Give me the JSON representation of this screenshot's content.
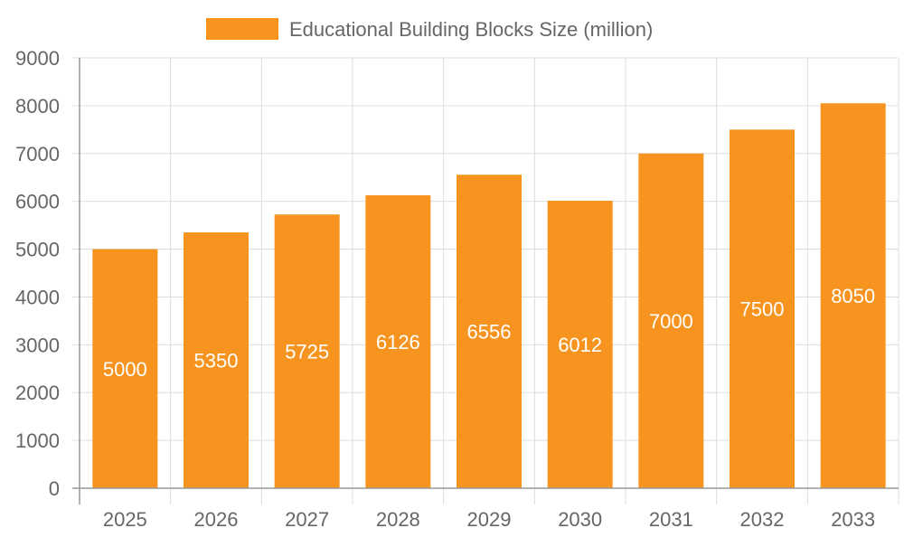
{
  "chart_data": {
    "type": "bar",
    "title": "",
    "legend": {
      "position": "top",
      "entries": [
        "Educational Building Blocks Size (million)"
      ]
    },
    "categories": [
      "2025",
      "2026",
      "2027",
      "2028",
      "2029",
      "2030",
      "2031",
      "2032",
      "2033"
    ],
    "series": [
      {
        "name": "Educational Building Blocks Size (million)",
        "values": [
          5000,
          5350,
          5725,
          6126,
          6556,
          6012,
          7000,
          7500,
          8050
        ],
        "color": "#F7941F"
      }
    ],
    "ylim": [
      0,
      9000
    ],
    "yticks": [
      0,
      1000,
      2000,
      3000,
      4000,
      5000,
      6000,
      7000,
      8000,
      9000
    ],
    "xlabel": "",
    "ylabel": "",
    "grid": true,
    "data_labels": true
  }
}
